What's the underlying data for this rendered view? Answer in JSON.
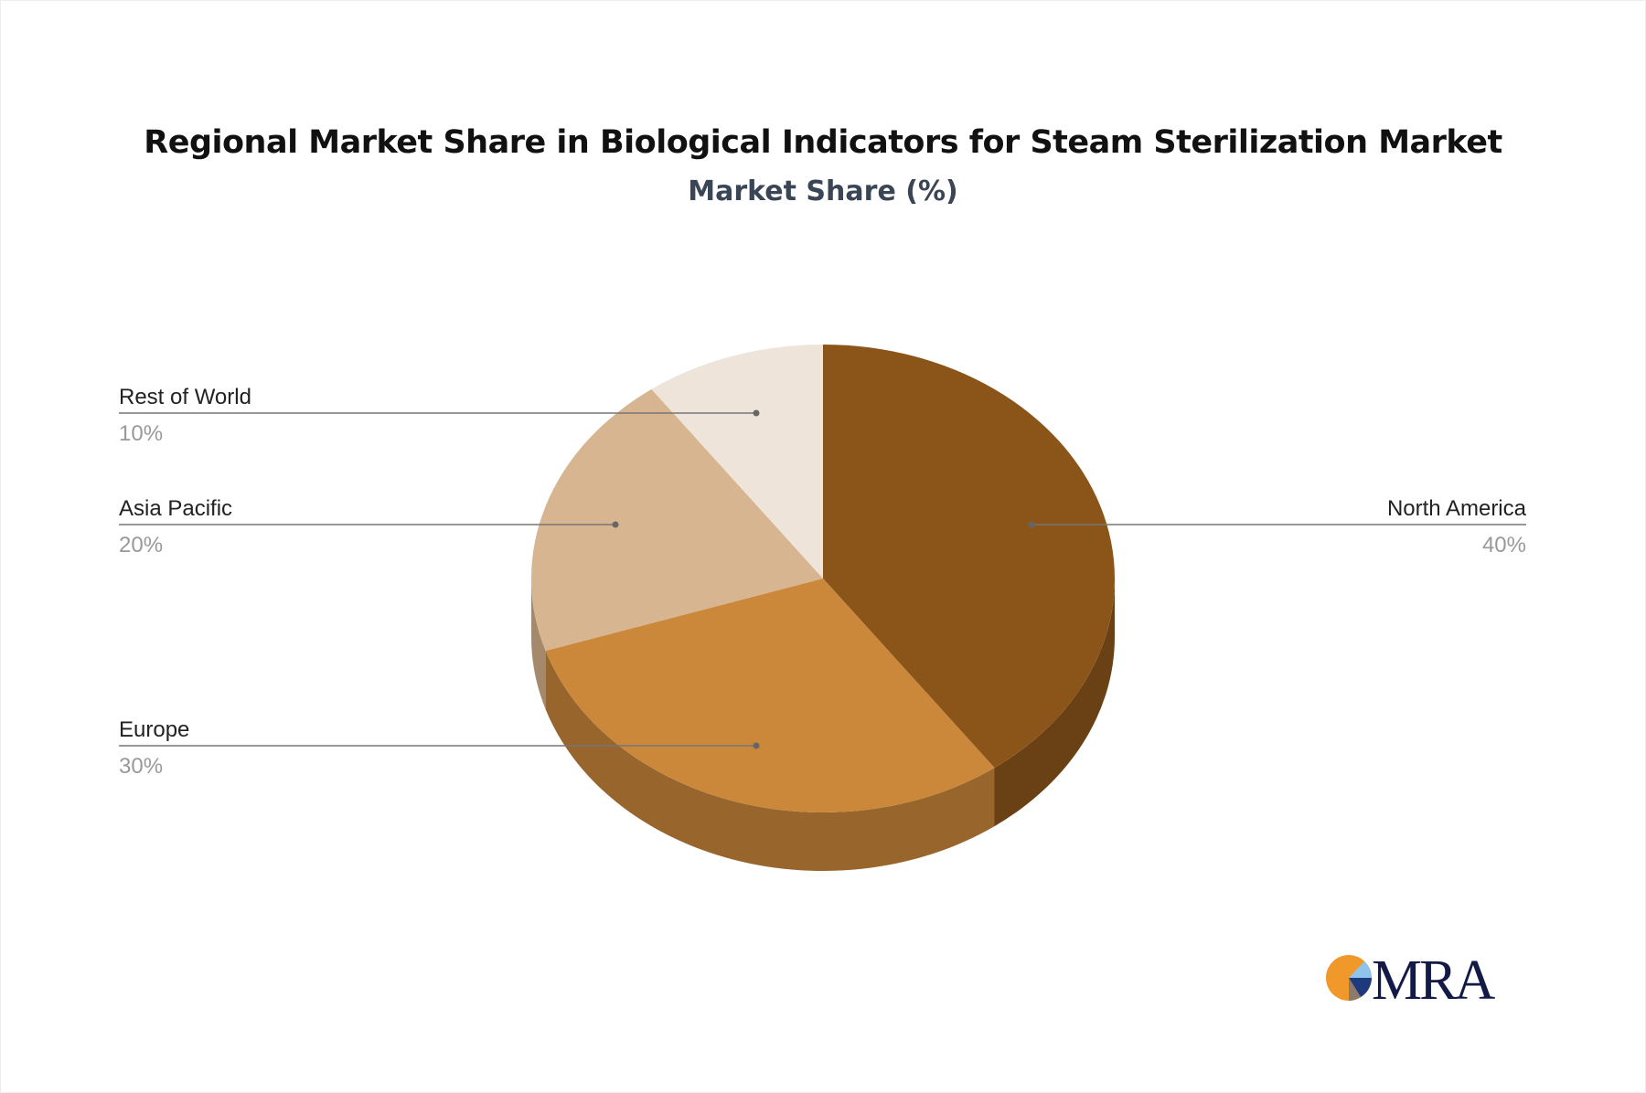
{
  "chart_data": {
    "type": "pie",
    "style": "3d",
    "title": "Regional Market Share in Biological Indicators for Steam Sterilization Market",
    "subtitle": "Market Share (%)",
    "categories": [
      "North America",
      "Europe",
      "Asia Pacific",
      "Rest of World"
    ],
    "values": [
      40,
      30,
      20,
      10
    ],
    "labels": [
      "40%",
      "30%",
      "20%",
      "10%"
    ],
    "colors": [
      "#8B5519",
      "#CB883B",
      "#D7B590",
      "#EFE4DA"
    ],
    "side_colors": [
      "#6A4114",
      "#98652C",
      "#A6896B",
      "#C9BCB0"
    ],
    "legend": "none"
  },
  "logo": {
    "text": "MRA"
  }
}
